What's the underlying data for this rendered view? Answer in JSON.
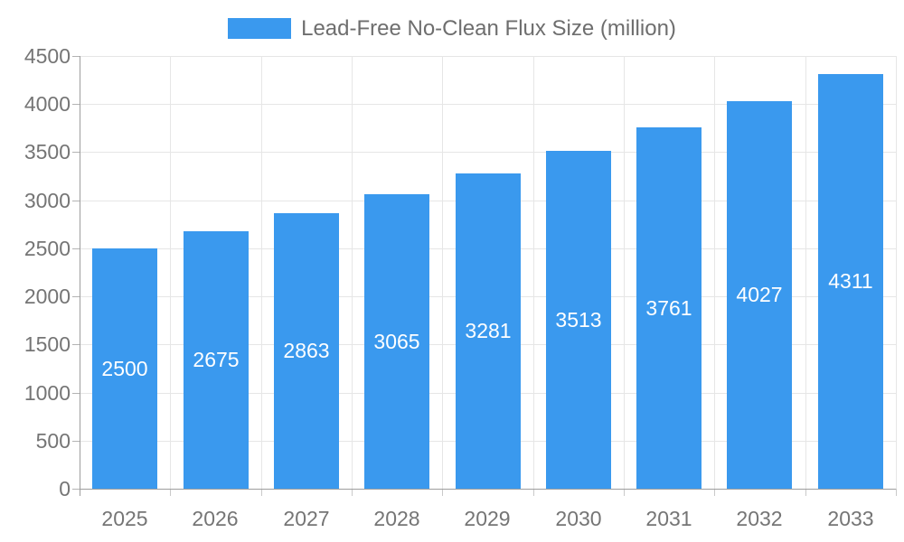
{
  "chart_data": {
    "type": "bar",
    "title": "",
    "legend": "Lead-Free No-Clean Flux Size (million)",
    "legend_position": "top-center",
    "categories": [
      "2025",
      "2026",
      "2027",
      "2028",
      "2029",
      "2030",
      "2031",
      "2032",
      "2033"
    ],
    "values": [
      2500,
      2675,
      2863,
      3065,
      3281,
      3513,
      3761,
      4027,
      4311
    ],
    "xlabel": "",
    "ylabel": "",
    "ylim": [
      0,
      4500
    ],
    "yticks": [
      0,
      500,
      1000,
      1500,
      2000,
      2500,
      3000,
      3500,
      4000,
      4500
    ],
    "grid": "on",
    "colors": {
      "bar": "#3A99EE",
      "bar_label": "#FFFFFF",
      "axis_line": "#9E9E9E",
      "grid_line": "#E6E6E6",
      "tick_mark_y": "#B3B3B3",
      "tick_mark_x": "#C9C9C9",
      "tick_label": "#757575",
      "legend_text": "#6E6E6E",
      "background": "#FFFFFF"
    }
  }
}
